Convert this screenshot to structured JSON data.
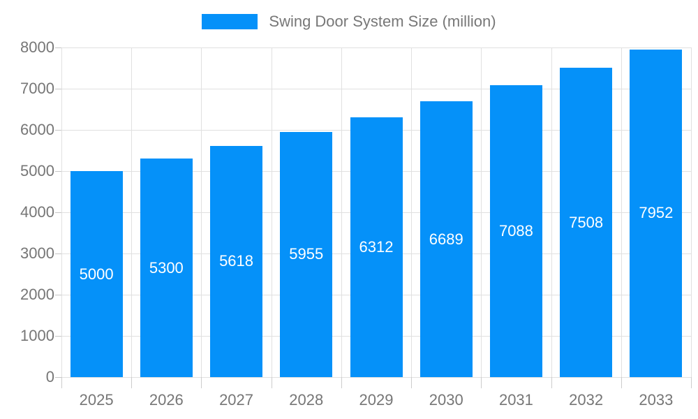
{
  "chart_data": {
    "type": "bar",
    "title": "Swing Door System Size (million)",
    "legend": [
      {
        "label": "Swing Door System Size (million)",
        "color": "#0591f9"
      }
    ],
    "legend_position": "top-center",
    "categories": [
      "2025",
      "2026",
      "2027",
      "2028",
      "2029",
      "2030",
      "2031",
      "2032",
      "2033"
    ],
    "series": [
      {
        "name": "Swing Door System Size (million)",
        "values": [
          5000,
          5300,
          5618,
          5955,
          6312,
          6689,
          7088,
          7508,
          7952
        ]
      }
    ],
    "bar_labels": [
      "5000",
      "5300",
      "5618",
      "5955",
      "6312",
      "6689",
      "7088",
      "7508",
      "7952"
    ],
    "xlabel": "",
    "ylabel": "",
    "ylim": [
      0,
      8000
    ],
    "yticks": [
      0,
      1000,
      2000,
      3000,
      4000,
      5000,
      6000,
      7000,
      8000
    ],
    "ytick_labels": [
      "0",
      "1000",
      "2000",
      "3000",
      "4000",
      "5000",
      "6000",
      "7000",
      "8000"
    ],
    "grid": true,
    "colors": {
      "bar": "#0591f9",
      "bar_value_text": "#ffffff",
      "axis_text": "#767676",
      "legend_text": "#777777",
      "gridline": "#e0e0e0",
      "axis_line": "#b8b8b8",
      "background": "#ffffff"
    }
  }
}
